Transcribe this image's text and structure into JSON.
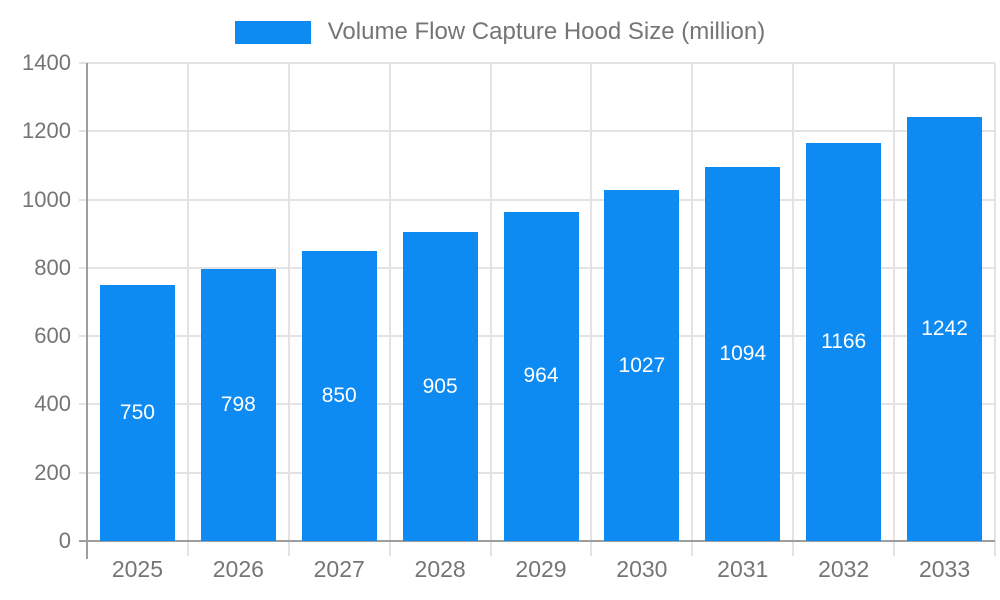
{
  "chart_data": {
    "type": "bar",
    "title": "Volume Flow Capture Hood Size (million)",
    "categories": [
      "2025",
      "2026",
      "2027",
      "2028",
      "2029",
      "2030",
      "2031",
      "2032",
      "2033"
    ],
    "values": [
      750,
      798,
      850,
      905,
      964,
      1027,
      1094,
      1166,
      1242
    ],
    "value_labels": [
      "750",
      "798",
      "850",
      "905",
      "964",
      "1027",
      "1094",
      "1166",
      "1242"
    ],
    "xlabel": "",
    "ylabel": "",
    "ylim": [
      0,
      1400
    ],
    "ytick_step": 200,
    "ytick_labels": [
      "0",
      "200",
      "400",
      "600",
      "800",
      "1000",
      "1200",
      "1400"
    ],
    "grid": true,
    "legend_position": "top-center",
    "value_label_position": "inside-center",
    "colors": {
      "bar": "#0d8bf2",
      "value_text": "#ffffff",
      "axis_text": "#757575",
      "grid_line": "#e3e3e3",
      "axis_line": "#9e9e9e",
      "background": "#ffffff"
    }
  }
}
